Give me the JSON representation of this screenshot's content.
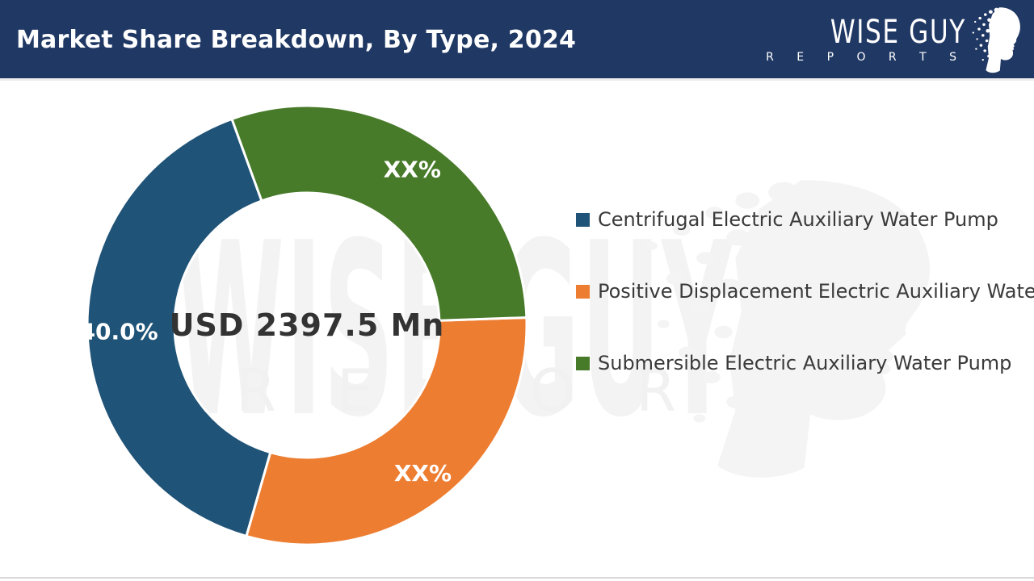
{
  "header": {
    "title": "Market Share Breakdown, By Type, 2024",
    "logo": {
      "line1": "WISE GUY",
      "line2": "R E P O R T S"
    }
  },
  "watermark": {
    "line1": "WISE GUY",
    "line2": "R E P O R T S"
  },
  "chart_data": {
    "type": "pie",
    "subtype": "donut",
    "title": "Market Share Breakdown, By Type, 2024",
    "center_value": "USD 2397.5 Mn",
    "start_angle_deg": 110,
    "direction": "counterclockwise",
    "inner_radius_ratio": 0.6,
    "legend_position": "right",
    "segments": [
      {
        "label": "Centrifugal Electric Auxiliary Water Pump",
        "value_pct": 40.0,
        "display_label": "40.0%",
        "color": "#1f5377"
      },
      {
        "label": "Positive Displacement Electric Auxiliary Water Pump",
        "value_pct": 30.0,
        "display_label": "XX%",
        "color": "#ed7d31"
      },
      {
        "label": "Submersible Electric Auxiliary Water Pump",
        "value_pct": 30.0,
        "display_label": "XX%",
        "color": "#477a29"
      }
    ]
  },
  "colors": {
    "header_bg": "#203864",
    "watermark": "#f3f3f3",
    "slice_label_text": "#ffffff",
    "center_text": "#333333",
    "legend_text": "#3a3a3a",
    "bottom_line": "#d9d9d9"
  }
}
